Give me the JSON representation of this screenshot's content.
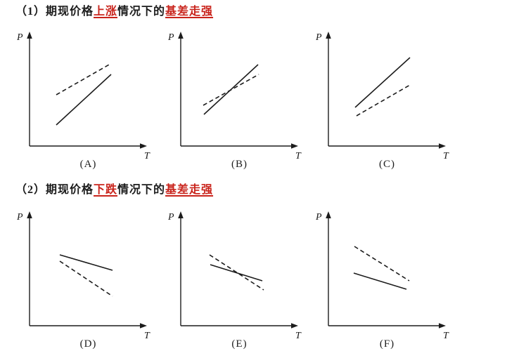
{
  "colors": {
    "background": "#ffffff",
    "ink": "#1c1c1c",
    "accent_red": "#c9241c"
  },
  "sections": [
    {
      "heading_parts": [
        {
          "text": "（1）期现价格",
          "emphasis": false
        },
        {
          "text": "上涨",
          "emphasis": true
        },
        {
          "text": "情况下的",
          "emphasis": false
        },
        {
          "text": "基差走强",
          "emphasis": true
        }
      ],
      "charts": [
        {
          "label": "(A)",
          "y_axis_label": "P",
          "x_axis_label": "T",
          "solid_line": [
            62,
            138,
            140,
            66
          ],
          "dashed_line": [
            62,
            95,
            139,
            51
          ]
        },
        {
          "label": "(B)",
          "y_axis_label": "P",
          "x_axis_label": "T",
          "solid_line": [
            57,
            123,
            134,
            52
          ],
          "dashed_line": [
            56,
            110,
            135,
            66
          ]
        },
        {
          "label": "(C)",
          "y_axis_label": "P",
          "x_axis_label": "T",
          "solid_line": [
            62,
            113,
            140,
            42
          ],
          "dashed_line": [
            64,
            125,
            140,
            81
          ]
        }
      ]
    },
    {
      "heading_parts": [
        {
          "text": "（2）期现价格",
          "emphasis": false
        },
        {
          "text": "下跌",
          "emphasis": true
        },
        {
          "text": "情况下的",
          "emphasis": false
        },
        {
          "text": "基差走强",
          "emphasis": true
        }
      ],
      "charts": [
        {
          "label": "(D)",
          "y_axis_label": "P",
          "x_axis_label": "T",
          "solid_line": [
            67,
            67,
            142,
            89
          ],
          "dashed_line": [
            67,
            76,
            142,
            126
          ]
        },
        {
          "label": "(E)",
          "y_axis_label": "P",
          "x_axis_label": "T",
          "solid_line": [
            66,
            81,
            140,
            104
          ],
          "dashed_line": [
            65,
            67,
            142,
            117
          ]
        },
        {
          "label": "(F)",
          "y_axis_label": "P",
          "x_axis_label": "T",
          "solid_line": [
            60,
            93,
            135,
            116
          ],
          "dashed_line": [
            61,
            55,
            139,
            104
          ]
        }
      ]
    }
  ]
}
